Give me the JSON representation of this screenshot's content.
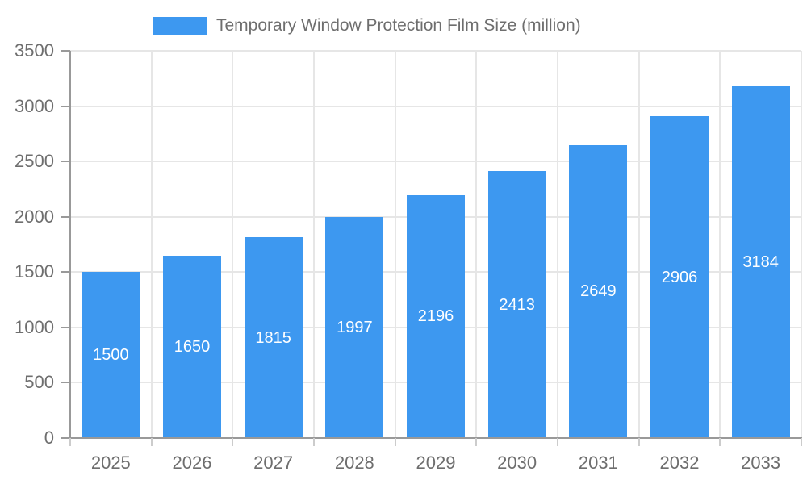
{
  "legend": {
    "label": "Temporary Window Protection Film Size (million)"
  },
  "chart_data": {
    "type": "bar",
    "title": "Temporary Window Protection Film Size (million)",
    "series_name": "Temporary Window Protection Film Size (million)",
    "categories": [
      "2025",
      "2026",
      "2027",
      "2028",
      "2029",
      "2030",
      "2031",
      "2032",
      "2033"
    ],
    "values": [
      1500,
      1650,
      1815,
      1997,
      2196,
      2413,
      2649,
      2906,
      3184
    ],
    "xlabel": "",
    "ylabel": "",
    "ylim": [
      0,
      3500
    ],
    "y_ticks": [
      0,
      500,
      1000,
      1500,
      2000,
      2500,
      3000,
      3500
    ],
    "grid": true,
    "legend_position": "top",
    "value_labels": "inside-center"
  },
  "colors": {
    "bar": "#3D98F0",
    "grid": "#e6e6e6",
    "axis": "#999999",
    "y_tick": "#999999",
    "x_tick": "#cccccc",
    "axis_text": "#6e6e6e",
    "value_label": "#ffffff"
  }
}
